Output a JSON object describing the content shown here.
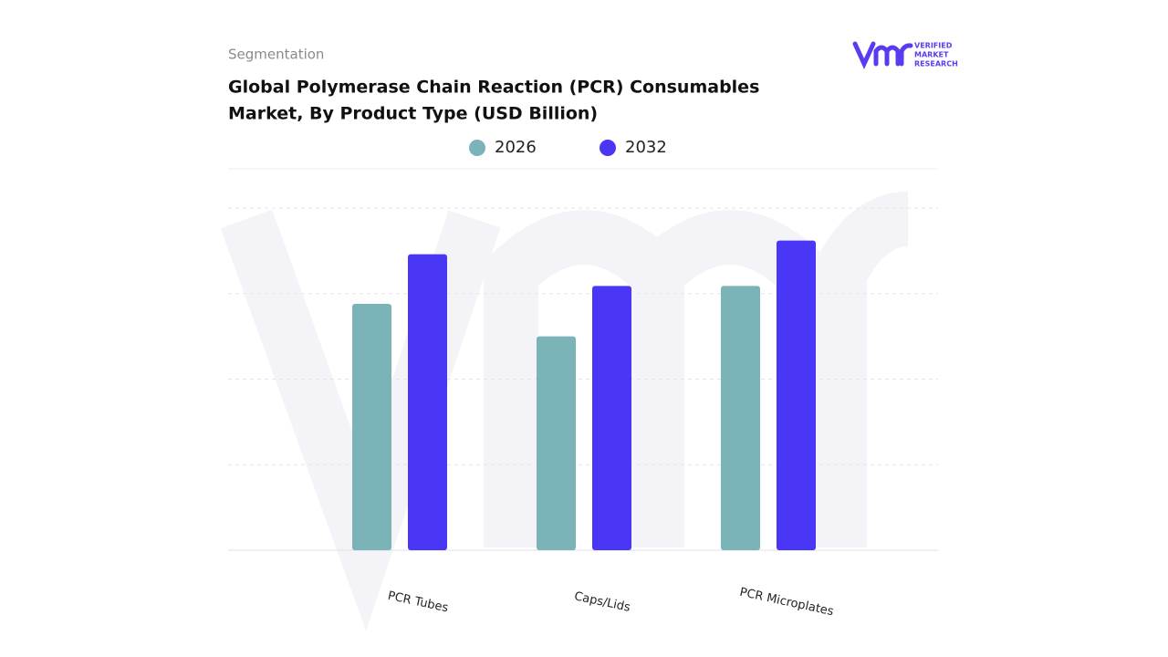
{
  "chart_data": {
    "type": "bar",
    "subtitle": "Segmentation",
    "title_lines": [
      "Global Polymerase Chain Reaction (PCR) Consumables",
      "Market, By Product Type (USD Billion)"
    ],
    "logo": [
      "VERIFIED",
      "MARKET",
      "RESEARCH"
    ],
    "categories": [
      "PCR Tubes",
      "Caps/Lids",
      "PCR Microplates"
    ],
    "series": [
      {
        "name": "2026",
        "color": "#7ab3b8",
        "values": [
          2.88,
          2.5,
          3.09
        ]
      },
      {
        "name": "2032",
        "color": "#4a36f5",
        "values": [
          3.46,
          3.09,
          3.62
        ]
      }
    ],
    "ylim": [
      0,
      4
    ],
    "yticks": [
      0,
      1,
      2,
      3,
      4
    ],
    "grid": true
  }
}
